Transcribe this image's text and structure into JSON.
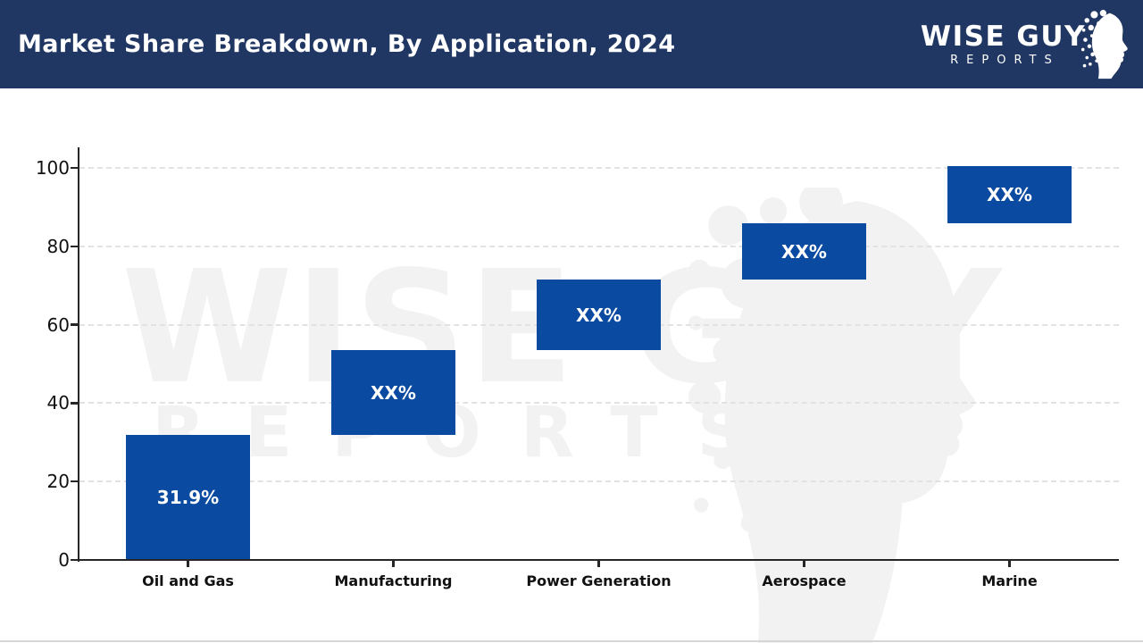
{
  "header": {
    "title": "Market Share Breakdown, By Application, 2024",
    "logo": {
      "line1": "WISE GUY",
      "line2": "REPORTS"
    }
  },
  "watermark": {
    "line1": "WISE GUY",
    "line2": "REPORTS"
  },
  "colors": {
    "header_bg": "#213763",
    "bar": "#0a4aa0",
    "grid": "#e2e2e2",
    "axis": "#262626",
    "bar_label": "#ffffff",
    "watermark": "#f2f2f2"
  },
  "chart_data": {
    "type": "bar",
    "subtype": "waterfall",
    "title": "Market Share Breakdown, By Application, 2024",
    "categories": [
      "Oil and Gas",
      "Manufacturing",
      "Power Generation",
      "Aerospace",
      "Marine"
    ],
    "bars": [
      {
        "category": "Oil and Gas",
        "start": 0,
        "end": 31.9,
        "value": 31.9,
        "label": "31.9%"
      },
      {
        "category": "Manufacturing",
        "start": 31.9,
        "end": 53.5,
        "value": 21.6,
        "label": "XX%"
      },
      {
        "category": "Power Generation",
        "start": 53.5,
        "end": 71.5,
        "value": 18.0,
        "label": "XX%"
      },
      {
        "category": "Aerospace",
        "start": 71.5,
        "end": 85.8,
        "value": 14.3,
        "label": "XX%"
      },
      {
        "category": "Marine",
        "start": 85.8,
        "end": 100.4,
        "value": 14.6,
        "label": "XX%"
      }
    ],
    "yticks": [
      0,
      20,
      40,
      60,
      80,
      100
    ],
    "ylim": [
      0,
      105
    ],
    "xlabel": "",
    "ylabel": "",
    "grid": "horizontal-dashed",
    "legend": "none"
  }
}
